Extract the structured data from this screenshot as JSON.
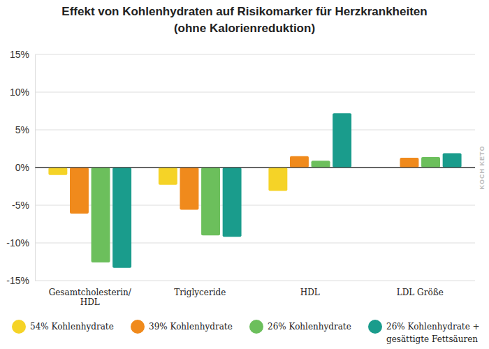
{
  "chart_data": {
    "type": "bar",
    "title": "Effekt von Kohlenhydraten auf Risikomarker für Herzkrankheiten",
    "subtitle": "(ohne Kalorienreduktion)",
    "categories": [
      "Gesamtcholesterin/\nHDL",
      "Triglyceride",
      "HDL",
      "LDL Größe"
    ],
    "series": [
      {
        "name": "54% Kohlenhydrate",
        "color": "#f5d327",
        "values": [
          -1.0,
          -2.3,
          -3.1,
          0
        ]
      },
      {
        "name": "39% Kohlenhydrate",
        "color": "#f08a1c",
        "values": [
          -6.1,
          -5.6,
          1.5,
          1.3
        ]
      },
      {
        "name": "26% Kohlenhydrate",
        "color": "#6cbf5c",
        "values": [
          -12.6,
          -9.0,
          0.9,
          1.4
        ]
      },
      {
        "name": "26% Kohlenhydrate +\ngesättigte Fettsäuren",
        "color": "#1a9c8c",
        "values": [
          -13.3,
          -9.2,
          7.2,
          1.9
        ]
      }
    ],
    "ylim": [
      -15,
      15
    ],
    "yticks": [
      {
        "value": -15,
        "label": "-15%"
      },
      {
        "value": -10,
        "label": "-10%"
      },
      {
        "value": -5,
        "label": "-5%"
      },
      {
        "value": 0,
        "label": "0%"
      },
      {
        "value": 5,
        "label": "5%"
      },
      {
        "value": 10,
        "label": "10%"
      },
      {
        "value": 15,
        "label": "15%"
      }
    ],
    "grid": true,
    "legend": "bottom",
    "annotations": [
      "KOCH KETO"
    ]
  }
}
